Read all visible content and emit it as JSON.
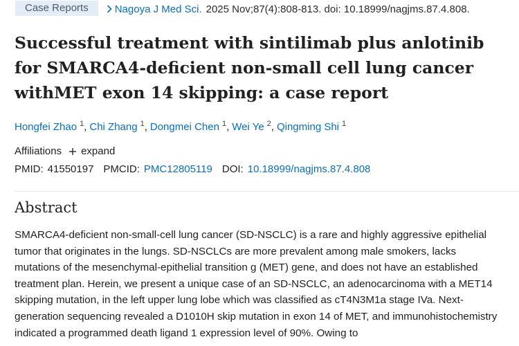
{
  "header": {
    "publication_type": "Case Reports",
    "journal": "Nagoya J Med Sci.",
    "citation": "2025 Nov;87(4):808-813. doi: 10.18999/nagjms.87.4.808."
  },
  "title": "Successful treatment with sintilimab plus anlotinib for SMARCA4-deficient non-small cell lung cancer withMET exon 14 skipping: a case report",
  "authors": [
    {
      "name": "Hongfei Zhao",
      "affiliation": 1
    },
    {
      "name": "Chi Zhang",
      "affiliation": 1
    },
    {
      "name": "Dongmei Chen",
      "affiliation": 1
    },
    {
      "name": "Wei Ye",
      "affiliation": 2
    },
    {
      "name": "Qingming Shi",
      "affiliation": 1
    }
  ],
  "affiliations": {
    "label": "Affiliations",
    "toggle": "expand"
  },
  "identifiers": [
    {
      "label": "PMID:",
      "value": "41550197"
    },
    {
      "label": "PMCID:",
      "value": "PMC12805119"
    },
    {
      "label": "DOI:",
      "value": "10.18999/nagjms.87.4.808"
    }
  ],
  "abstract": {
    "heading": "Abstract",
    "text": "SMARCA4-deficient non-small-cell lung cancer (SD-NSCLC) is a rare and highly aggressive epithelial tumor that originates in the lungs. SD-NSCLCs are more prevalent among male smokers, lacks mutations of the mesenchymal-epithelial transition g (MET) gene, and does not have an established treatment plan. Herein, we present a unique case of an SD-NSCLC, an adenocarcinoma with a MET14 skipping mutation, in the left upper lung lobe which was classified as cT4N3M1a stage IVa. Next-generation sequencing revealed a D1010H skip mutation in exon 14 of MET, and immunohistochemistry indicated a programmed death ligand 1 expression level of 90%. Owing to"
  }
}
